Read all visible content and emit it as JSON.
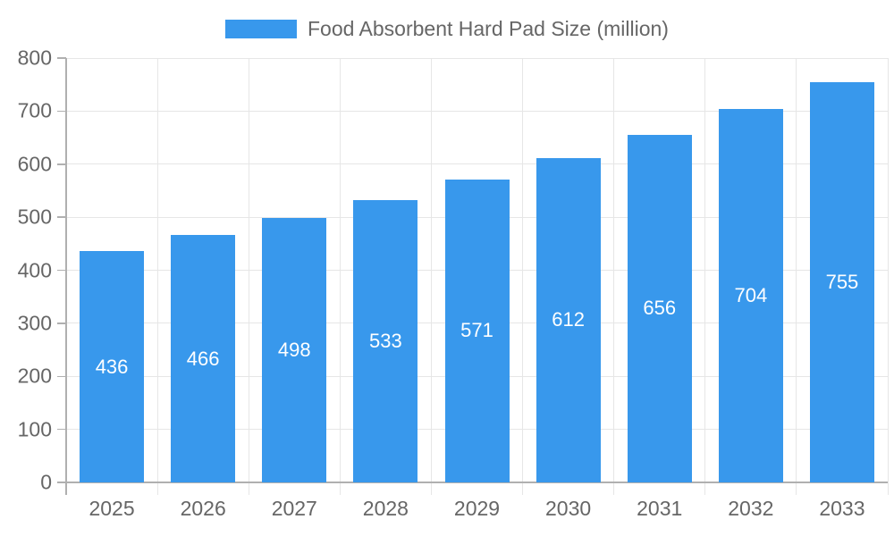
{
  "chart_data": {
    "type": "bar",
    "title": "Food Absorbent Hard Pad Size (million)",
    "categories": [
      "2025",
      "2026",
      "2027",
      "2028",
      "2029",
      "2030",
      "2031",
      "2032",
      "2033"
    ],
    "values": [
      436,
      466,
      498,
      533,
      571,
      612,
      656,
      704,
      755
    ],
    "series": [
      {
        "name": "Food Absorbent Hard Pad Size (million)",
        "values": [
          436,
          466,
          498,
          533,
          571,
          612,
          656,
          704,
          755
        ]
      }
    ],
    "xlabel": "",
    "ylabel": "",
    "ylim": [
      0,
      800
    ],
    "yticks": [
      0,
      100,
      200,
      300,
      400,
      500,
      600,
      700,
      800
    ],
    "grid": true,
    "legend_position": "top",
    "value_label_position": "inside-center",
    "colors": {
      "bar": "#3898ec",
      "grid": "#e6e6e6",
      "axis": "#b0b0b0",
      "tick_text": "#666666",
      "legend_text": "#666666",
      "value_label_text": "#ffffff",
      "background": "#ffffff"
    }
  }
}
